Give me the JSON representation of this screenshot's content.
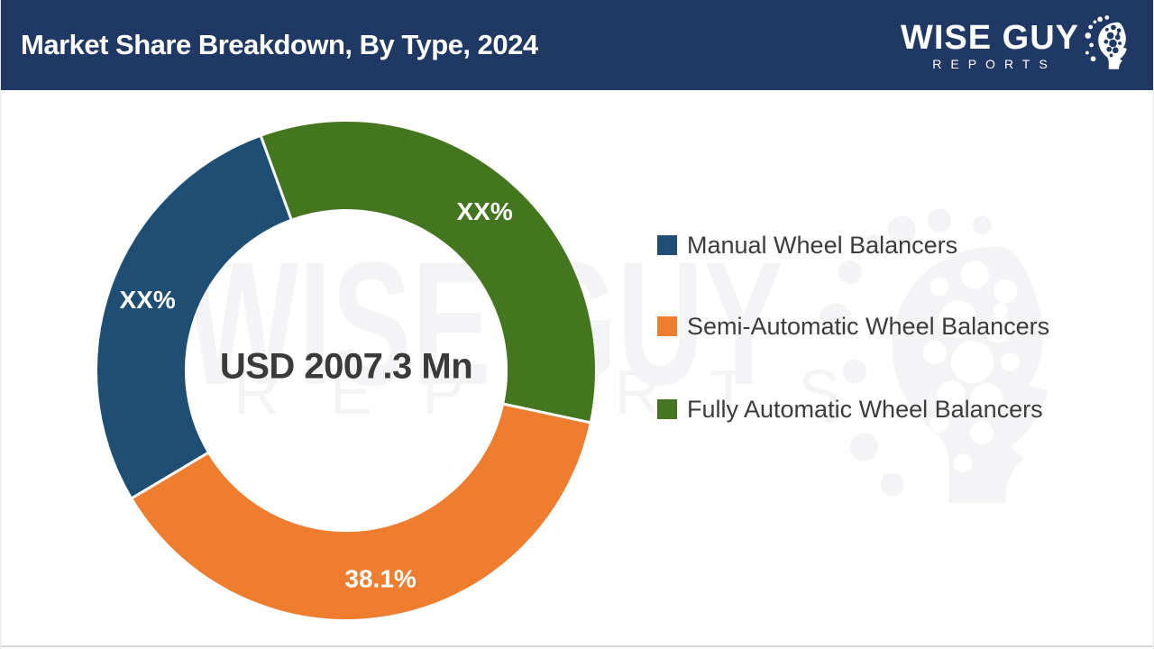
{
  "header": {
    "title": "Market Share Breakdown, By Type, 2024",
    "logo": {
      "name": "WISE GUY",
      "sub": "REPORTS"
    }
  },
  "chart_data": {
    "type": "pie",
    "variant": "donut",
    "title": "Market Share Breakdown, By Type, 2024",
    "center_label": "USD 2007.3 Mn",
    "start_angle_deg": -20,
    "direction": "clockwise",
    "legend_position": "right",
    "unit": "%",
    "segments": [
      {
        "name": "Fully Automatic Wheel Balancers",
        "display_label": "XX%",
        "value_pct": 33.9,
        "labeled_value_hidden": true,
        "color": "#44751f"
      },
      {
        "name": "Semi-Automatic Wheel Balancers",
        "display_label": "38.1%",
        "value_pct": 38.1,
        "labeled_value_hidden": false,
        "color": "#ee7d30"
      },
      {
        "name": "Manual Wheel Balancers",
        "display_label": "XX%",
        "value_pct": 28.0,
        "labeled_value_hidden": true,
        "color": "#1f4e74"
      }
    ]
  },
  "legend": {
    "items": [
      {
        "label": "Manual Wheel Balancers",
        "color": "#1f4e74"
      },
      {
        "label": "Semi-Automatic Wheel Balancers",
        "color": "#ee7d30"
      },
      {
        "label": "Fully Automatic Wheel Balancers",
        "color": "#44751f"
      }
    ]
  },
  "watermark": {
    "line1": "WISE GUY",
    "line2": "REPORTS"
  },
  "colors": {
    "header_bg": "#1f3864",
    "blue": "#1f4e74",
    "orange": "#ee7d30",
    "green": "#44751f",
    "center_text": "#3a3a3a",
    "legend_text": "#3c3c3c",
    "watermark": "#f4f4f6",
    "bottom_line": "#d8d8d8"
  }
}
